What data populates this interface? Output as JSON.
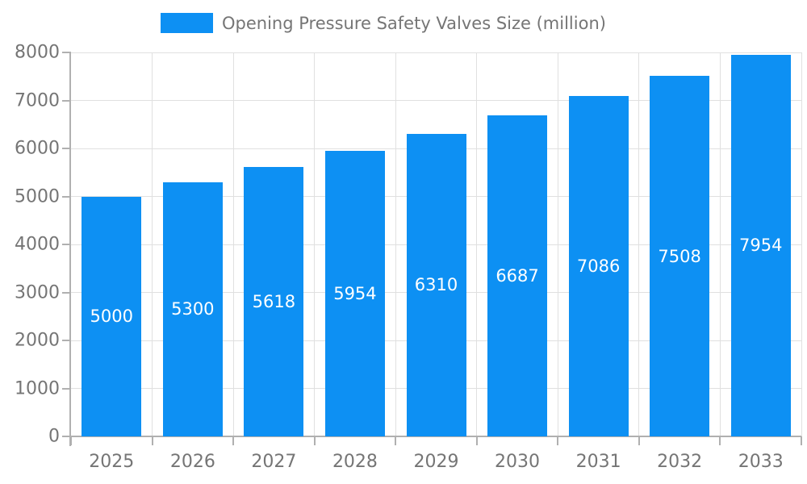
{
  "colors": {
    "bar": "#0d90f3",
    "grid": "#e0e0e0",
    "axis": "#b0b0b0",
    "text": "#757575",
    "value_label": "#ffffff",
    "background": "#ffffff"
  },
  "legend": {
    "label": "Opening Pressure Safety Valves Size (million)"
  },
  "chart_data": {
    "type": "bar",
    "title": "",
    "series_name": "Opening Pressure Safety Valves Size (million)",
    "categories": [
      "2025",
      "2026",
      "2027",
      "2028",
      "2029",
      "2030",
      "2031",
      "2032",
      "2033"
    ],
    "values": [
      5000,
      5300,
      5618,
      5954,
      6310,
      6687,
      7086,
      7508,
      7954
    ],
    "xlabel": "",
    "ylabel": "",
    "ylim": [
      0,
      8000
    ],
    "yticks": [
      0,
      1000,
      2000,
      3000,
      4000,
      5000,
      6000,
      7000,
      8000
    ],
    "grid": true,
    "legend_position": "top",
    "value_labels_position": "inside-middle"
  }
}
